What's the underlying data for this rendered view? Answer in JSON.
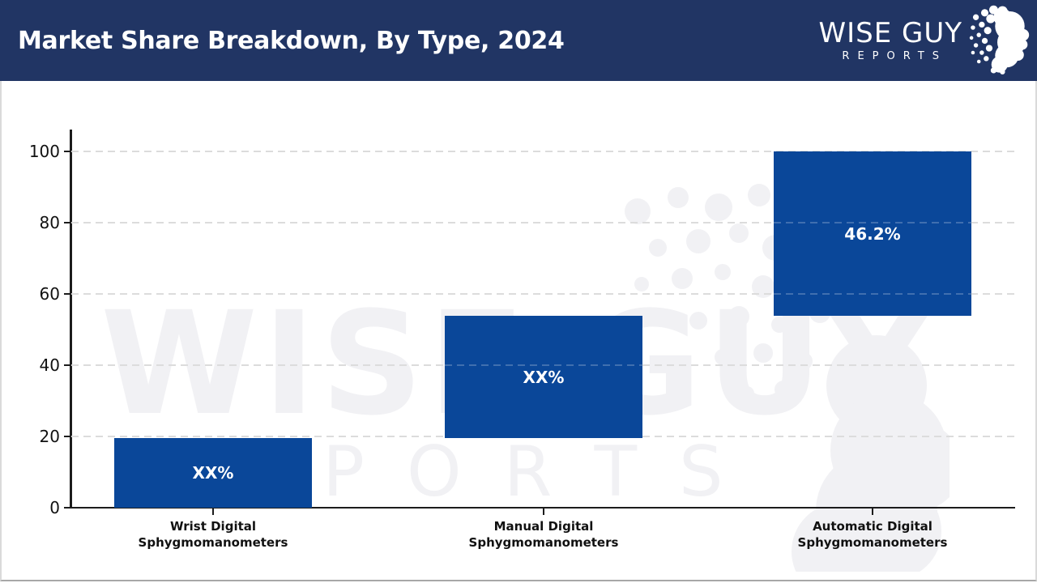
{
  "header": {
    "title": "Market Share Breakdown, By Type, 2024",
    "logo": {
      "wordmark": "WISE GUY",
      "subtext": "REPORTS"
    }
  },
  "watermark": {
    "wordmark": "WISE GUY",
    "subtext": "REPORTS"
  },
  "colors": {
    "header_background": "#213564",
    "bar": "#0a4799",
    "gridline": "#dcdcdc",
    "axis": "#1c1c1c",
    "bar_label_text": "#ffffff",
    "watermark": "#f1f1f4"
  },
  "chart_data": {
    "type": "bar",
    "subtype": "waterfall",
    "title": "Market Share Breakdown, By Type, 2024",
    "xlabel": "",
    "ylabel": "",
    "ylim": [
      0,
      106
    ],
    "yticks": [
      0,
      20,
      40,
      60,
      80,
      100
    ],
    "grid": "dashed-horizontal",
    "legend": "none",
    "categories": [
      "Wrist Digital Sphygmomanometers",
      "Manual Digital Sphygmomanometers",
      "Automatic Digital Sphygmomanometers"
    ],
    "category_lines": [
      [
        "Wrist Digital",
        "Sphygmomanometers"
      ],
      [
        "Manual Digital",
        "Sphygmomanometers"
      ],
      [
        "Automatic Digital",
        "Sphygmomanometers"
      ]
    ],
    "segments": [
      {
        "category": "Wrist Digital Sphygmomanometers",
        "start": 0,
        "end": 19.5,
        "size": 19.5,
        "value_label": "XX%"
      },
      {
        "category": "Manual Digital Sphygmomanometers",
        "start": 19.5,
        "end": 53.8,
        "size": 34.3,
        "value_label": "XX%"
      },
      {
        "category": "Automatic Digital Sphygmomanometers",
        "start": 53.8,
        "end": 100,
        "size": 46.2,
        "value_label": "46.2%"
      }
    ]
  }
}
